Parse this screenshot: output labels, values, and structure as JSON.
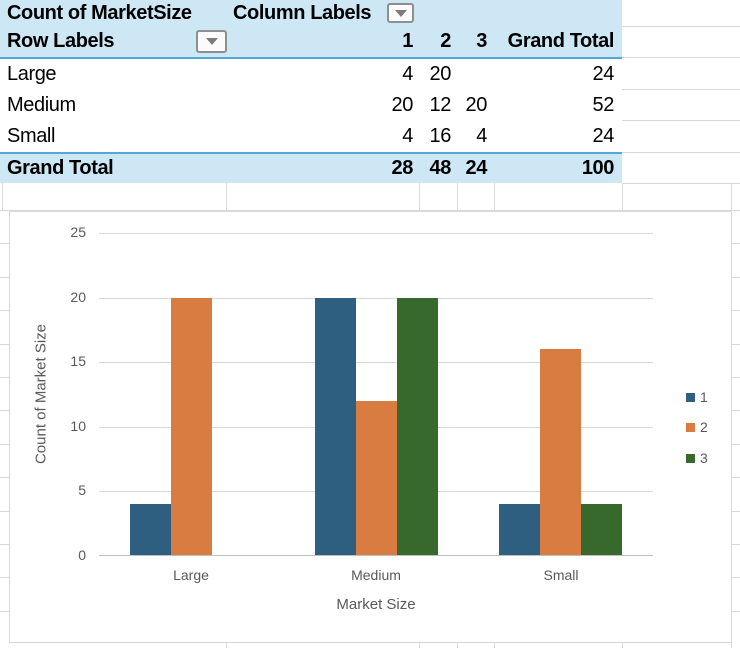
{
  "pivot_table": {
    "title_cell": "Count of MarketSize",
    "column_labels_header": "Column Labels",
    "row_labels_header": "Row Labels",
    "column_headers": [
      "1",
      "2",
      "3",
      "Grand Total"
    ],
    "rows": [
      {
        "label": "Large",
        "values": [
          "4",
          "20",
          "",
          "24"
        ]
      },
      {
        "label": "Medium",
        "values": [
          "20",
          "12",
          "20",
          "52"
        ]
      },
      {
        "label": "Small",
        "values": [
          "4",
          "16",
          "4",
          "24"
        ]
      }
    ],
    "grand_total_row": {
      "label": "Grand Total",
      "values": [
        "28",
        "48",
        "24",
        "100"
      ]
    },
    "colors": {
      "header_fill": "#cee7f5",
      "band_border": "#54a7da",
      "text": "#000000"
    }
  },
  "chart_data": {
    "type": "bar",
    "title": "",
    "categories": [
      "Large",
      "Medium",
      "Small"
    ],
    "series": [
      {
        "name": "1",
        "color": "#2e5f80",
        "values": [
          4,
          20,
          4
        ]
      },
      {
        "name": "2",
        "color": "#d87c42",
        "values": [
          20,
          12,
          16
        ]
      },
      {
        "name": "3",
        "color": "#36692b",
        "values": [
          null,
          20,
          4
        ]
      }
    ],
    "xlabel": "Market Size",
    "ylabel": "Count of Market Size",
    "ylim": [
      0,
      25
    ],
    "yticks": [
      0,
      5,
      10,
      15,
      20,
      25
    ],
    "legend_position": "right",
    "grid": "horizontal",
    "colors": {
      "gridline": "#d9d9d9",
      "axis_line": "#bfbfbf",
      "label_text": "#595959"
    }
  }
}
